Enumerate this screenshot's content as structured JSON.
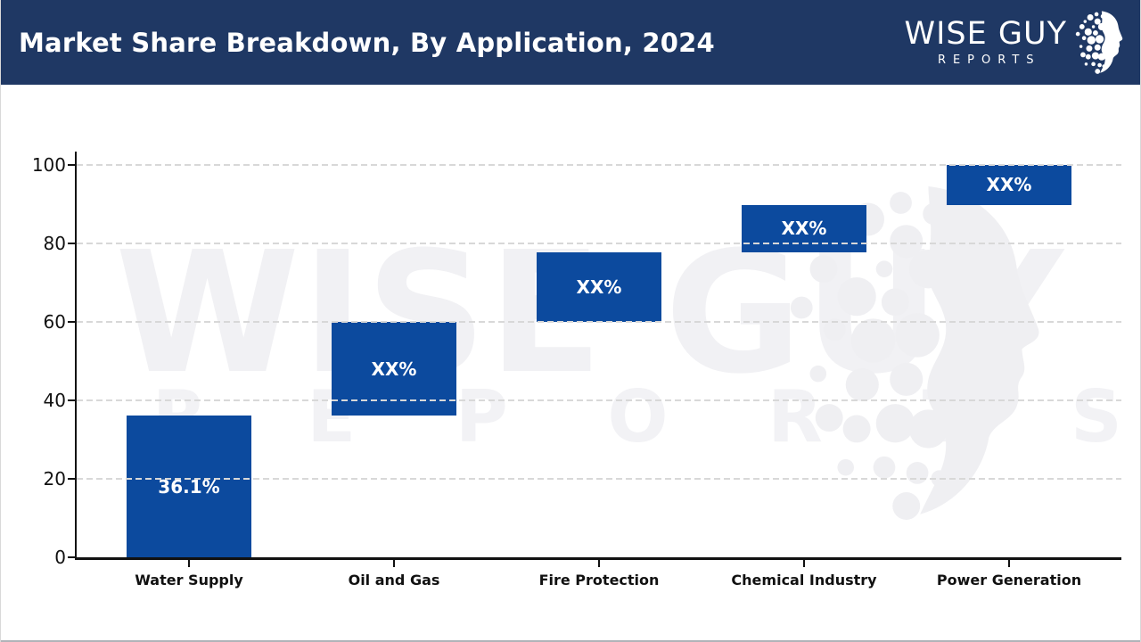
{
  "header": {
    "title": "Market Share Breakdown, By Application, 2024",
    "brand": {
      "line1": "WISE GUY",
      "line2": "REPORTS"
    }
  },
  "watermark": {
    "line1": "WISE GUY",
    "line2": "R E P O R T S"
  },
  "chart_data": {
    "type": "bar",
    "subtype": "waterfall",
    "title": "Market Share Breakdown, By Application, 2024",
    "categories": [
      "Water Supply",
      "Oil and Gas",
      "Fire Protection",
      "Chemical Industry",
      "Power Generation"
    ],
    "segments": [
      {
        "category": "Water Supply",
        "start": 0,
        "end": 36.1,
        "label": "36.1%"
      },
      {
        "category": "Oil and Gas",
        "start": 36.1,
        "end": 60.0,
        "label": "XX%"
      },
      {
        "category": "Fire Protection",
        "start": 60.0,
        "end": 77.8,
        "label": "XX%"
      },
      {
        "category": "Chemical Industry",
        "start": 77.8,
        "end": 89.8,
        "label": "XX%"
      },
      {
        "category": "Power Generation",
        "start": 89.8,
        "end": 100,
        "label": "XX%"
      }
    ],
    "yticks": [
      0,
      20,
      40,
      60,
      80,
      100
    ],
    "ylim": [
      0,
      103
    ],
    "grid": "dashed-horizontal",
    "legend": "none",
    "xlabel": "",
    "ylabel": ""
  },
  "colors": {
    "header_bg": "#1f3864",
    "bar": "#0c4a9e",
    "bar_label": "#ffffff",
    "grid": "#d8d8d8",
    "axis": "#111111",
    "watermark": "#f1f1f4"
  }
}
